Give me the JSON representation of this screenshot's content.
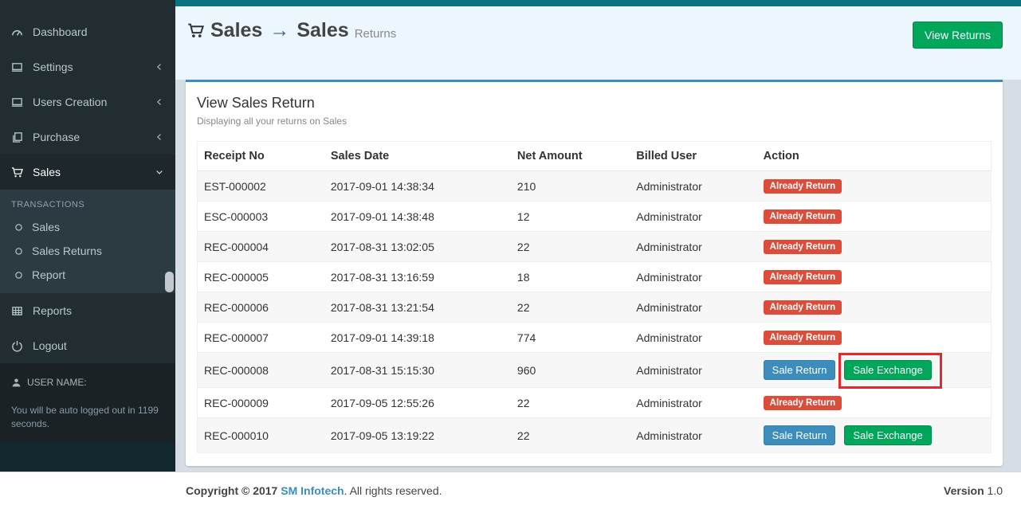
{
  "sidebar": {
    "items": [
      {
        "label": "Dashboard"
      },
      {
        "label": "Settings"
      },
      {
        "label": "Users Creation"
      },
      {
        "label": "Purchase"
      },
      {
        "label": "Sales"
      }
    ],
    "transactions_header": "TRANSACTIONS",
    "transaction_items": [
      {
        "label": "Sales"
      },
      {
        "label": "Sales Returns"
      },
      {
        "label": "Report"
      }
    ],
    "reports_label": "Reports",
    "logout_label": "Logout",
    "user_label": "USER NAME:",
    "auto_logout_text": "You will be auto logged out in 1199 seconds."
  },
  "header": {
    "title_primary": "Sales",
    "title_arrow": "→",
    "title_secondary": "Sales",
    "title_suffix": "Returns",
    "view_returns_button": "View Returns"
  },
  "panel": {
    "title": "View Sales Return",
    "subtitle": "Displaying all your returns on Sales",
    "table": {
      "columns": [
        "Receipt No",
        "Sales Date",
        "Net Amount",
        "Billed User",
        "Action"
      ],
      "action_labels": {
        "already": "Already Return",
        "return": "Sale Return",
        "exchange": "Sale Exchange"
      },
      "rows": [
        {
          "receipt_no": "EST-000002",
          "sales_date": "2017-09-01 14:38:34",
          "net_amount": "210",
          "billed_user": "Administrator",
          "actions": [
            {
              "type": "already"
            }
          ]
        },
        {
          "receipt_no": "ESC-000003",
          "sales_date": "2017-09-01 14:38:48",
          "net_amount": "12",
          "billed_user": "Administrator",
          "actions": [
            {
              "type": "already"
            }
          ]
        },
        {
          "receipt_no": "REC-000004",
          "sales_date": "2017-08-31 13:02:05",
          "net_amount": "22",
          "billed_user": "Administrator",
          "actions": [
            {
              "type": "already"
            }
          ]
        },
        {
          "receipt_no": "REC-000005",
          "sales_date": "2017-08-31 13:16:59",
          "net_amount": "18",
          "billed_user": "Administrator",
          "actions": [
            {
              "type": "already"
            }
          ]
        },
        {
          "receipt_no": "REC-000006",
          "sales_date": "2017-08-31 13:21:54",
          "net_amount": "22",
          "billed_user": "Administrator",
          "actions": [
            {
              "type": "already"
            }
          ]
        },
        {
          "receipt_no": "REC-000007",
          "sales_date": "2017-09-01 14:39:18",
          "net_amount": "774",
          "billed_user": "Administrator",
          "actions": [
            {
              "type": "already"
            }
          ]
        },
        {
          "receipt_no": "REC-000008",
          "sales_date": "2017-08-31 15:15:30",
          "net_amount": "960",
          "billed_user": "Administrator",
          "actions": [
            {
              "type": "return"
            },
            {
              "type": "exchange",
              "highlighted": true
            }
          ]
        },
        {
          "receipt_no": "REC-000009",
          "sales_date": "2017-09-05 12:55:26",
          "net_amount": "22",
          "billed_user": "Administrator",
          "actions": [
            {
              "type": "already"
            }
          ]
        },
        {
          "receipt_no": "REC-000010",
          "sales_date": "2017-09-05 13:19:22",
          "net_amount": "22",
          "billed_user": "Administrator",
          "actions": [
            {
              "type": "return"
            },
            {
              "type": "exchange"
            }
          ]
        }
      ]
    }
  },
  "footer": {
    "copyright_bold": "Copyright © 2017 ",
    "company": "SM Infotech",
    "rights": ". All rights reserved.",
    "version_label": "Version",
    "version_value": "1.0"
  },
  "colors": {
    "accent_blue": "#3c8dbc",
    "success_green": "#00a65a",
    "danger_red": "#dd4b39",
    "annotation_red": "#e8262b",
    "sidebar_bg": "#222d32",
    "top_strip_teal": "#0a7580"
  }
}
